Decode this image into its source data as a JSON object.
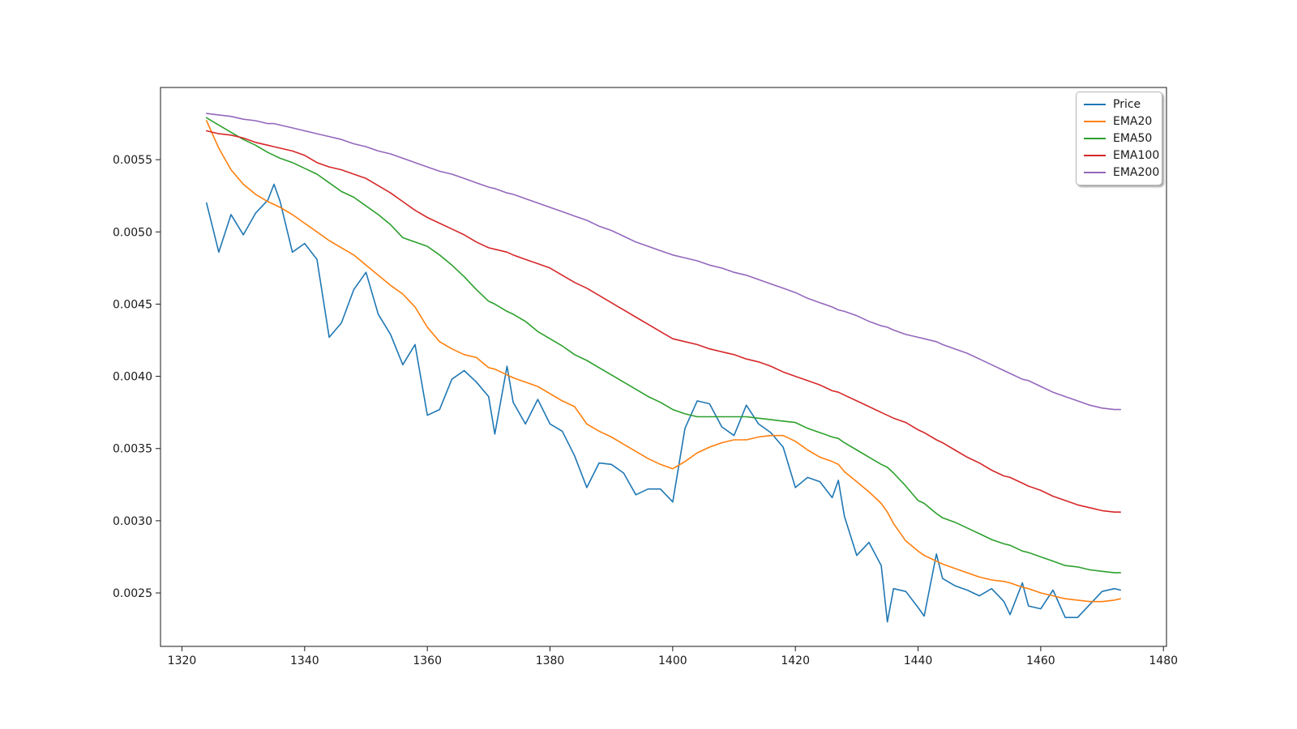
{
  "chart_data": {
    "type": "line",
    "title": "",
    "xlabel": "",
    "ylabel": "",
    "grid": false,
    "xlim": [
      1316.5,
      1480.5
    ],
    "ylim": [
      0.00213,
      0.006
    ],
    "xticks": [
      1320,
      1340,
      1360,
      1380,
      1400,
      1420,
      1440,
      1460,
      1480
    ],
    "yticks": [
      0.0025,
      0.003,
      0.0035,
      0.004,
      0.0045,
      0.005,
      0.0055
    ],
    "ytick_labels": [
      "0.0025",
      "0.0030",
      "0.0035",
      "0.0040",
      "0.0045",
      "0.0050",
      "0.0055"
    ],
    "xtick_labels": [
      "1320",
      "1340",
      "1360",
      "1380",
      "1400",
      "1420",
      "1440",
      "1460",
      "1480"
    ],
    "legend": {
      "location": "upper right",
      "entries": [
        "Price",
        "EMA20",
        "EMA50",
        "EMA100",
        "EMA200"
      ]
    },
    "x": [
      1324,
      1326,
      1328,
      1330,
      1332,
      1334,
      1335,
      1336,
      1338,
      1340,
      1342,
      1344,
      1346,
      1348,
      1350,
      1352,
      1354,
      1356,
      1358,
      1360,
      1362,
      1364,
      1366,
      1368,
      1370,
      1371,
      1373,
      1374,
      1376,
      1378,
      1380,
      1382,
      1384,
      1386,
      1388,
      1390,
      1392,
      1394,
      1396,
      1398,
      1400,
      1402,
      1404,
      1406,
      1408,
      1410,
      1412,
      1414,
      1416,
      1418,
      1420,
      1422,
      1424,
      1426,
      1427,
      1428,
      1430,
      1432,
      1434,
      1435,
      1436,
      1438,
      1440,
      1441,
      1443,
      1444,
      1446,
      1448,
      1450,
      1452,
      1454,
      1455,
      1457,
      1458,
      1460,
      1462,
      1464,
      1466,
      1468,
      1470,
      1472,
      1473
    ],
    "series": [
      {
        "name": "Price",
        "color": "#1f77b4",
        "values": [
          0.0052,
          0.00486,
          0.00512,
          0.00498,
          0.00513,
          0.00522,
          0.00533,
          0.00521,
          0.00486,
          0.00492,
          0.00481,
          0.00427,
          0.00437,
          0.0046,
          0.00472,
          0.00443,
          0.00429,
          0.00408,
          0.00422,
          0.00373,
          0.00377,
          0.00398,
          0.00404,
          0.00396,
          0.00386,
          0.0036,
          0.00407,
          0.00382,
          0.00367,
          0.00384,
          0.00367,
          0.00362,
          0.00345,
          0.00323,
          0.0034,
          0.00339,
          0.00333,
          0.00318,
          0.00322,
          0.00322,
          0.00313,
          0.00364,
          0.00383,
          0.00381,
          0.00365,
          0.00359,
          0.0038,
          0.00367,
          0.00361,
          0.00351,
          0.00323,
          0.0033,
          0.00327,
          0.00316,
          0.00328,
          0.00303,
          0.00276,
          0.00285,
          0.00269,
          0.0023,
          0.00253,
          0.00251,
          0.0024,
          0.00234,
          0.00277,
          0.0026,
          0.00255,
          0.00252,
          0.00248,
          0.00253,
          0.00244,
          0.00235,
          0.00257,
          0.00241,
          0.00239,
          0.00252,
          0.00233,
          0.00233,
          0.00242,
          0.00251,
          0.00253,
          0.00252
        ]
      },
      {
        "name": "EMA20",
        "color": "#ff7f0e",
        "values": [
          0.00577,
          0.00558,
          0.00543,
          0.00533,
          0.00526,
          0.00521,
          0.00519,
          0.00517,
          0.00512,
          0.00506,
          0.005,
          0.00494,
          0.00489,
          0.00484,
          0.00477,
          0.0047,
          0.00463,
          0.00457,
          0.00448,
          0.00434,
          0.00424,
          0.00419,
          0.00415,
          0.00413,
          0.00406,
          0.00405,
          0.00401,
          0.00399,
          0.00396,
          0.00393,
          0.00388,
          0.00383,
          0.00379,
          0.00367,
          0.00362,
          0.00358,
          0.00353,
          0.00348,
          0.00343,
          0.00339,
          0.00336,
          0.00341,
          0.00347,
          0.00351,
          0.00354,
          0.00356,
          0.00356,
          0.00358,
          0.00359,
          0.00359,
          0.00355,
          0.00349,
          0.00344,
          0.00341,
          0.00339,
          0.00334,
          0.00327,
          0.0032,
          0.00312,
          0.00306,
          0.00298,
          0.00286,
          0.00279,
          0.00276,
          0.00272,
          0.0027,
          0.00267,
          0.00264,
          0.00261,
          0.00259,
          0.00258,
          0.00257,
          0.00254,
          0.00253,
          0.0025,
          0.00248,
          0.00246,
          0.00245,
          0.00244,
          0.00244,
          0.00245,
          0.00246
        ]
      },
      {
        "name": "EMA50",
        "color": "#2ca02c",
        "values": [
          0.00579,
          0.00574,
          0.00569,
          0.00564,
          0.0056,
          0.00555,
          0.00553,
          0.00551,
          0.00548,
          0.00544,
          0.0054,
          0.00534,
          0.00528,
          0.00524,
          0.00518,
          0.00512,
          0.00505,
          0.00496,
          0.00493,
          0.0049,
          0.00484,
          0.00477,
          0.00469,
          0.0046,
          0.00452,
          0.0045,
          0.00445,
          0.00443,
          0.00438,
          0.00431,
          0.00426,
          0.00421,
          0.00415,
          0.00411,
          0.00406,
          0.00401,
          0.00396,
          0.00391,
          0.00386,
          0.00382,
          0.00377,
          0.00374,
          0.00372,
          0.00372,
          0.00372,
          0.00372,
          0.00372,
          0.00371,
          0.0037,
          0.00369,
          0.00368,
          0.00364,
          0.00361,
          0.00358,
          0.00357,
          0.00354,
          0.00349,
          0.00344,
          0.00339,
          0.00337,
          0.00333,
          0.00324,
          0.00314,
          0.00312,
          0.00305,
          0.00302,
          0.00299,
          0.00295,
          0.00291,
          0.00287,
          0.00284,
          0.00283,
          0.00279,
          0.00278,
          0.00275,
          0.00272,
          0.00269,
          0.00268,
          0.00266,
          0.00265,
          0.00264,
          0.00264
        ]
      },
      {
        "name": "EMA100",
        "color": "#d62728",
        "values": [
          0.0057,
          0.00568,
          0.00567,
          0.00565,
          0.00562,
          0.0056,
          0.00559,
          0.00558,
          0.00556,
          0.00553,
          0.00548,
          0.00545,
          0.00543,
          0.0054,
          0.00537,
          0.00532,
          0.00527,
          0.00521,
          0.00515,
          0.0051,
          0.00506,
          0.00502,
          0.00498,
          0.00493,
          0.00489,
          0.00488,
          0.00486,
          0.00484,
          0.00481,
          0.00478,
          0.00475,
          0.0047,
          0.00465,
          0.00461,
          0.00456,
          0.00451,
          0.00446,
          0.00441,
          0.00436,
          0.00431,
          0.00426,
          0.00424,
          0.00422,
          0.00419,
          0.00417,
          0.00415,
          0.00412,
          0.0041,
          0.00407,
          0.00403,
          0.004,
          0.00397,
          0.00394,
          0.0039,
          0.00389,
          0.00387,
          0.00383,
          0.00379,
          0.00375,
          0.00373,
          0.00371,
          0.00368,
          0.00363,
          0.00361,
          0.00356,
          0.00354,
          0.00349,
          0.00344,
          0.0034,
          0.00335,
          0.00331,
          0.0033,
          0.00326,
          0.00324,
          0.00321,
          0.00317,
          0.00314,
          0.00311,
          0.00309,
          0.00307,
          0.00306,
          0.00306
        ]
      },
      {
        "name": "EMA200",
        "color": "#9467bd",
        "values": [
          0.00582,
          0.00581,
          0.0058,
          0.00578,
          0.00577,
          0.00575,
          0.00575,
          0.00574,
          0.00572,
          0.0057,
          0.00568,
          0.00566,
          0.00564,
          0.00561,
          0.00559,
          0.00556,
          0.00554,
          0.00551,
          0.00548,
          0.00545,
          0.00542,
          0.0054,
          0.00537,
          0.00534,
          0.00531,
          0.0053,
          0.00527,
          0.00526,
          0.00523,
          0.0052,
          0.00517,
          0.00514,
          0.00511,
          0.00508,
          0.00504,
          0.00501,
          0.00497,
          0.00493,
          0.0049,
          0.00487,
          0.00484,
          0.00482,
          0.0048,
          0.00477,
          0.00475,
          0.00472,
          0.0047,
          0.00467,
          0.00464,
          0.00461,
          0.00458,
          0.00454,
          0.00451,
          0.00448,
          0.00446,
          0.00445,
          0.00442,
          0.00438,
          0.00435,
          0.00434,
          0.00432,
          0.00429,
          0.00427,
          0.00426,
          0.00424,
          0.00422,
          0.00419,
          0.00416,
          0.00412,
          0.00408,
          0.00404,
          0.00402,
          0.00398,
          0.00397,
          0.00393,
          0.00389,
          0.00386,
          0.00383,
          0.0038,
          0.00378,
          0.00377,
          0.00377
        ]
      }
    ]
  },
  "style": {
    "axis_color": "#1a1a1a",
    "line_width": 1.6,
    "tick_length": 6,
    "background": "#ffffff"
  }
}
